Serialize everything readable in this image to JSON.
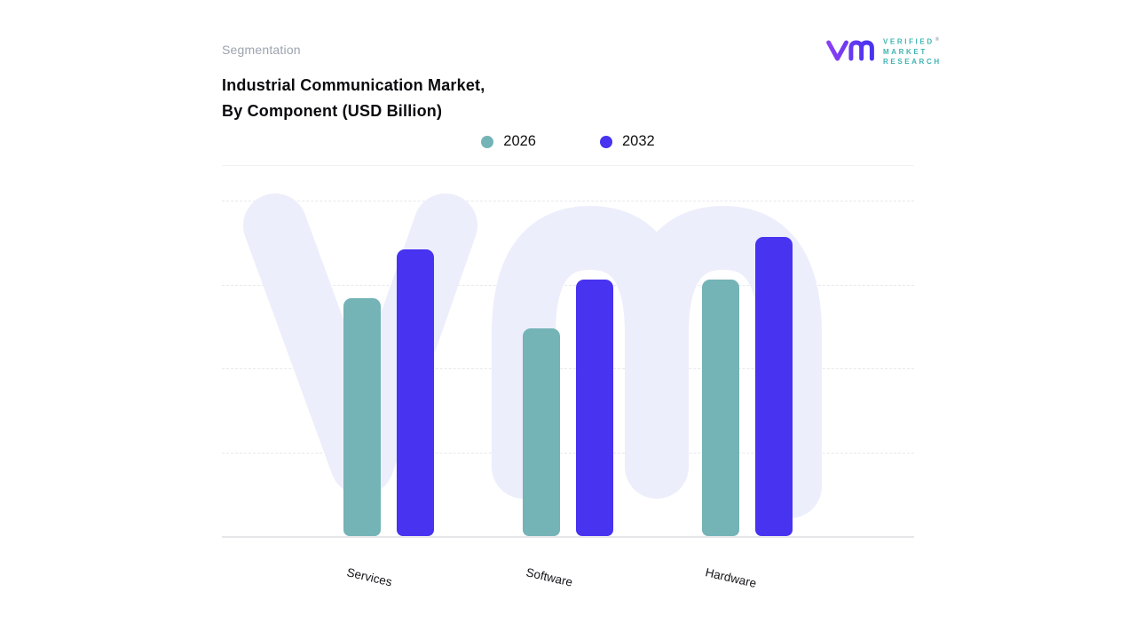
{
  "header": {
    "eyebrow": "Segmentation",
    "title_line1": "Industrial Communication Market,",
    "title_line2": "By Component (USD Billion)"
  },
  "logo": {
    "lines": [
      "VERIFIED",
      "MARKET",
      "RESEARCH"
    ],
    "registered_mark": "®",
    "mark_gradient": [
      "#8a3ff2",
      "#4733f0"
    ],
    "text_color": "#3db5b2"
  },
  "colors": {
    "bar_2026": "#74b3b6",
    "bar_2032": "#4733f0",
    "watermark": "#edeefb",
    "grid": "#e8e8ec",
    "baseline": "#e7e7ea"
  },
  "chart_data": {
    "type": "bar",
    "title": "Industrial Communication Market, By Component (USD Billion)",
    "categories": [
      "Services",
      "Software",
      "Hardware"
    ],
    "series": [
      {
        "name": "2026",
        "color": "#74b3b6",
        "values": [
          78,
          68,
          84
        ]
      },
      {
        "name": "2032",
        "color": "#4733f0",
        "values": [
          94,
          84,
          98
        ]
      }
    ],
    "xlabel": "",
    "ylabel": "",
    "ylim": [
      0,
      110
    ],
    "grid": "horizontal-dashed",
    "legend_position": "top-center"
  }
}
